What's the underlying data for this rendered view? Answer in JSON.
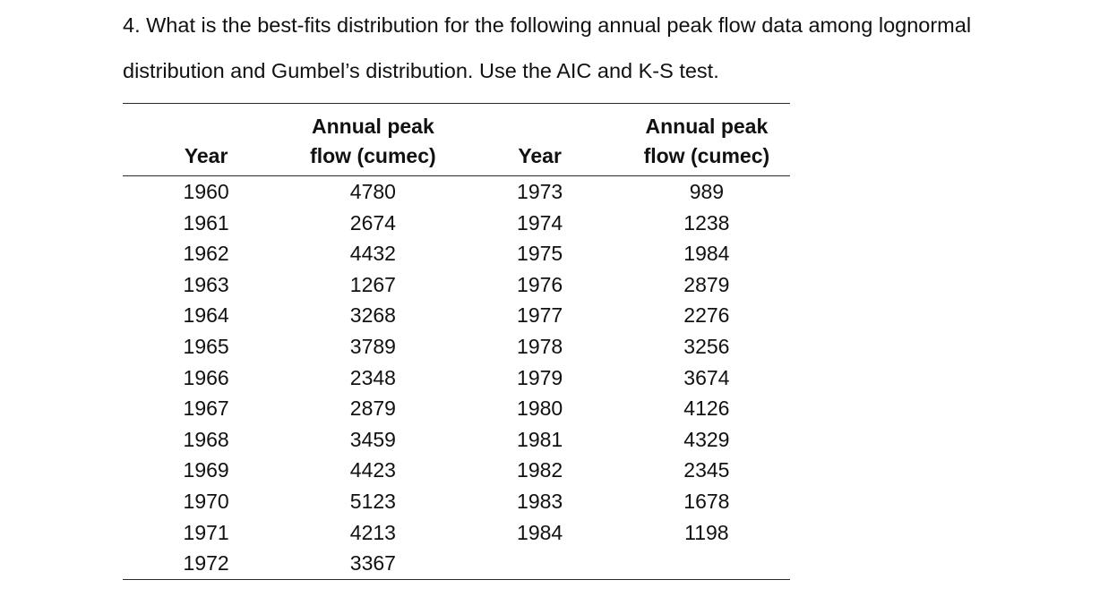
{
  "colors": {
    "background": "#ffffff",
    "text": "#111111",
    "rule": "#2b2b2b"
  },
  "question": {
    "line1": "4. What is the best-fits distribution for the following annual peak flow data among lognormal",
    "line2": "distribution and Gumbel’s distribution. Use the AIC and K-S test."
  },
  "table": {
    "headers": [
      {
        "line1": "",
        "line2": "Year"
      },
      {
        "line1": "Annual peak",
        "line2": "flow (cumec)"
      },
      {
        "line1": "",
        "line2": "Year"
      },
      {
        "line1": "Annual peak",
        "line2": "flow (cumec)"
      }
    ],
    "rows": [
      [
        "1960",
        "4780",
        "1973",
        "989"
      ],
      [
        "1961",
        "2674",
        "1974",
        "1238"
      ],
      [
        "1962",
        "4432",
        "1975",
        "1984"
      ],
      [
        "1963",
        "1267",
        "1976",
        "2879"
      ],
      [
        "1964",
        "3268",
        "1977",
        "2276"
      ],
      [
        "1965",
        "3789",
        "1978",
        "3256"
      ],
      [
        "1966",
        "2348",
        "1979",
        "3674"
      ],
      [
        "1967",
        "2879",
        "1980",
        "4126"
      ],
      [
        "1968",
        "3459",
        "1981",
        "4329"
      ],
      [
        "1969",
        "4423",
        "1982",
        "2345"
      ],
      [
        "1970",
        "5123",
        "1983",
        "1678"
      ],
      [
        "1971",
        "4213",
        "1984",
        "1198"
      ],
      [
        "1972",
        "3367",
        "",
        ""
      ]
    ]
  }
}
